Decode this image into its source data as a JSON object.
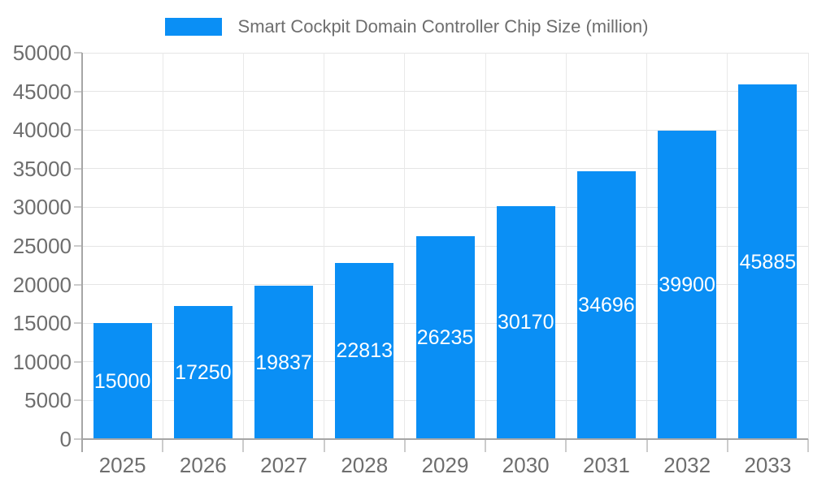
{
  "legend": {
    "label": "Smart Cockpit Domain Controller Chip Size (million)"
  },
  "colors": {
    "bar": "#0a8ff5",
    "axis_text": "#6e6e6e",
    "legend_text": "#6e6e6e",
    "grid": "#e5e5e5",
    "axis_line": "#a6a6a6",
    "tick": "#cccccc",
    "data_label": "#ffffff",
    "background": "#ffffff"
  },
  "chart_data": {
    "type": "bar",
    "title": "Smart Cockpit Domain Controller Chip Size (million)",
    "categories": [
      "2025",
      "2026",
      "2027",
      "2028",
      "2029",
      "2030",
      "2031",
      "2032",
      "2033"
    ],
    "values": [
      15000,
      17250,
      19837,
      22813,
      26235,
      30170,
      34696,
      39900,
      45885
    ],
    "xlabel": "",
    "ylabel": "",
    "ylim": [
      0,
      50000
    ],
    "ytick_step": 5000,
    "grid": true,
    "legend_position": "top-center",
    "data_labels": "inside-center"
  }
}
